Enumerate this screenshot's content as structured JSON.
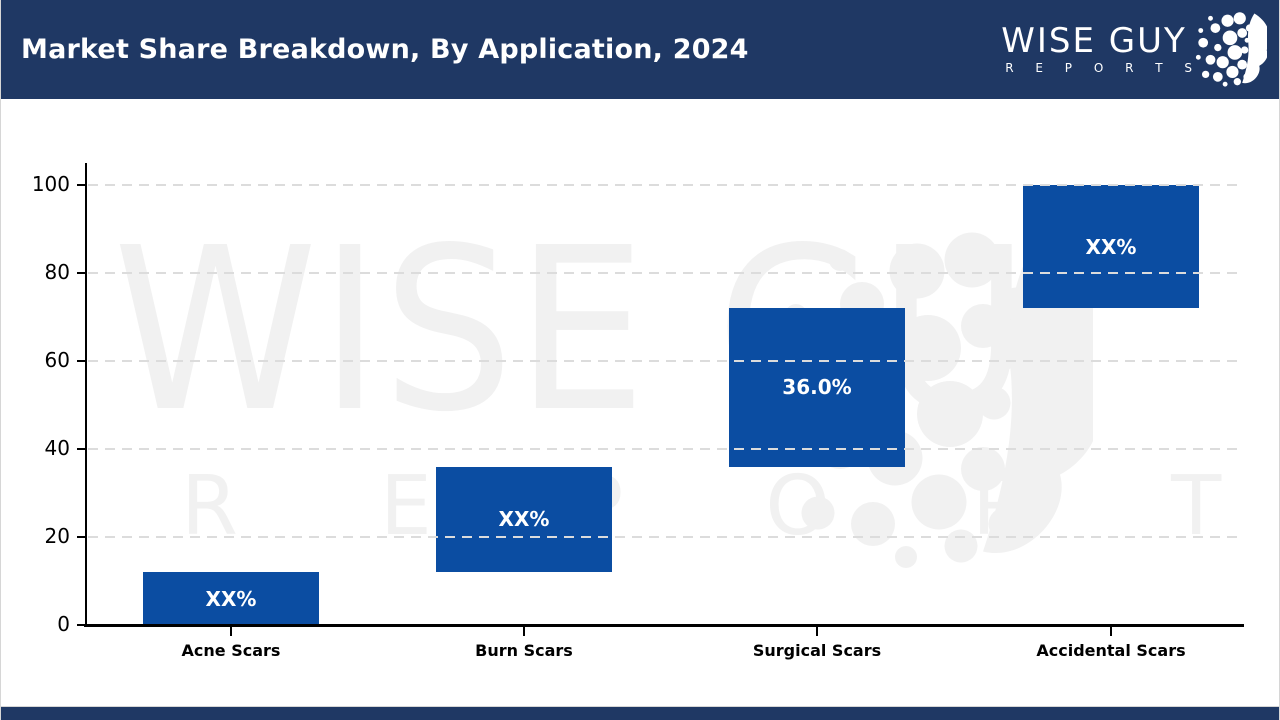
{
  "header": {
    "title": "Market Share Breakdown, By Application, 2024",
    "bg_color": "#1f3864",
    "logo": {
      "line1": "WISE GUY",
      "line2": "R E P O R T S"
    }
  },
  "watermark": {
    "line1": "WISE GU",
    "line2": "R E P O R T S"
  },
  "chart_data": {
    "type": "bar",
    "subtype": "floating-waterfall",
    "title": "Market Share Breakdown, By Application, 2024",
    "categories": [
      "Acne Scars",
      "Burn Scars",
      "Surgical Scars",
      "Accidental Scars"
    ],
    "segments": [
      {
        "category": "Acne Scars",
        "start": 0,
        "end": 12,
        "label": "XX%"
      },
      {
        "category": "Burn Scars",
        "start": 12,
        "end": 36,
        "label": "XX%"
      },
      {
        "category": "Surgical Scars",
        "start": 36,
        "end": 72,
        "label": "36.0%"
      },
      {
        "category": "Accidental Scars",
        "start": 72,
        "end": 100,
        "label": "XX%"
      }
    ],
    "ylim": [
      0,
      100
    ],
    "yticks": [
      0,
      20,
      40,
      60,
      80,
      100
    ],
    "grid": "horizontal-dashed",
    "legend": "none",
    "bar_color": "#0b4da2",
    "bar_label_color": "#ffffff",
    "axis_color": "#000000",
    "grid_color": "#dcdcdc"
  },
  "footer": {
    "bg_color": "#1f3864"
  }
}
